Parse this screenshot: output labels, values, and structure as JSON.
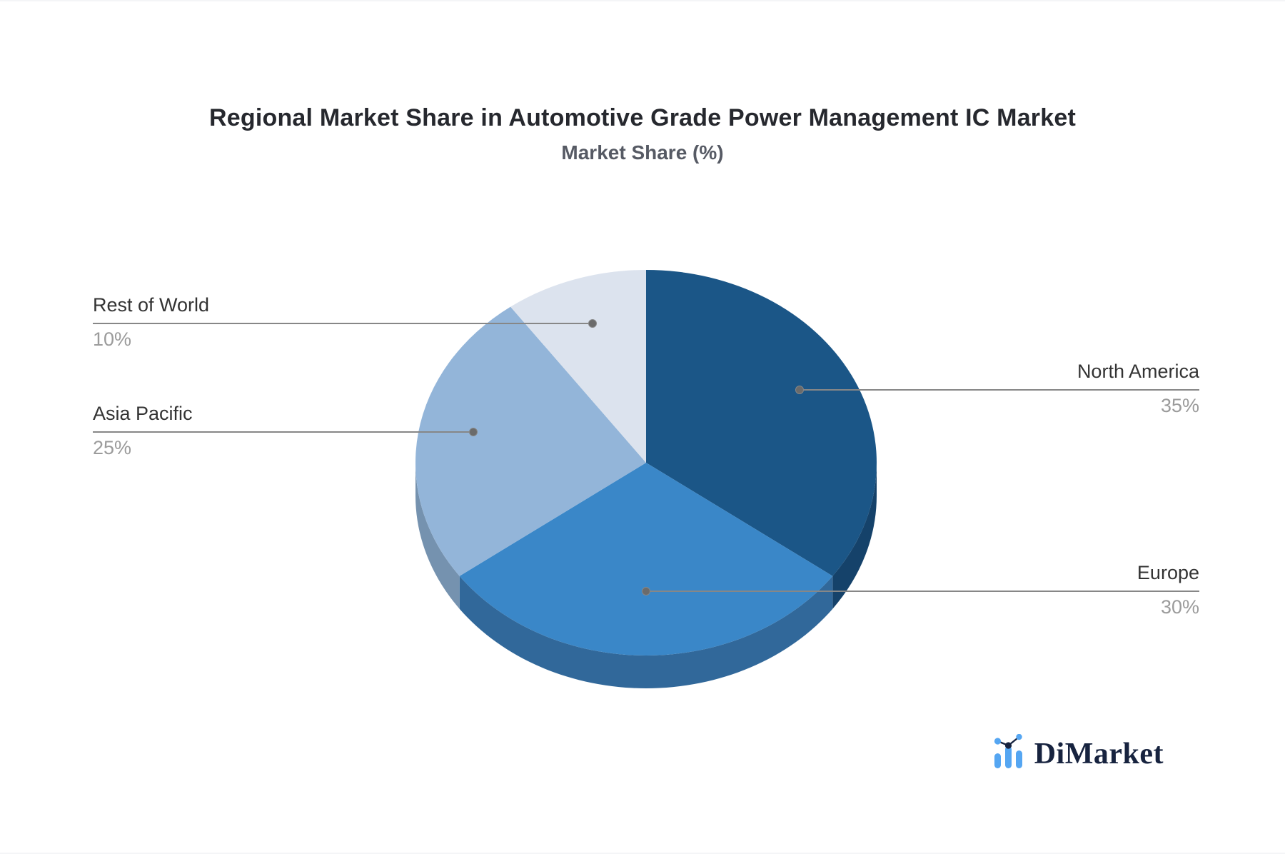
{
  "header": {
    "title": "Regional Market Share in Automotive Grade Power Management IC Market",
    "subtitle": "Market Share (%)"
  },
  "chart_data": {
    "type": "pie",
    "title": "Regional Market Share in Automotive Grade Power Management IC Market",
    "subtitle": "Market Share (%)",
    "style": "3d-pie",
    "direction": "clockwise",
    "start_angle_deg": 0,
    "legend": "none",
    "slices": [
      {
        "label": "North America",
        "value": 35,
        "display": "35%",
        "color": "#1B5687",
        "side_color": "#15426A"
      },
      {
        "label": "Europe",
        "value": 30,
        "display": "30%",
        "color": "#3A87C8",
        "side_color": "#31689A"
      },
      {
        "label": "Asia Pacific",
        "value": 25,
        "display": "25%",
        "color": "#93B5D9",
        "side_color": "#7592AF"
      },
      {
        "label": "Rest of World",
        "value": 10,
        "display": "10%",
        "color": "#DCE3EE",
        "side_color": "#B8C3D6"
      }
    ]
  },
  "logo": {
    "text": "DiMarket",
    "icon": "bar-line-chart-icon"
  },
  "colors": {
    "background": "#FFFFFF",
    "title": "#26282E",
    "subtitle": "#565A64",
    "label": "#333333",
    "value": "#9B9B9B",
    "leader_line": "#878787",
    "dot": "#6B6B6B",
    "logo_text": "#17233F",
    "logo_icon": "#55A6F2",
    "logo_line": "#17233F"
  }
}
